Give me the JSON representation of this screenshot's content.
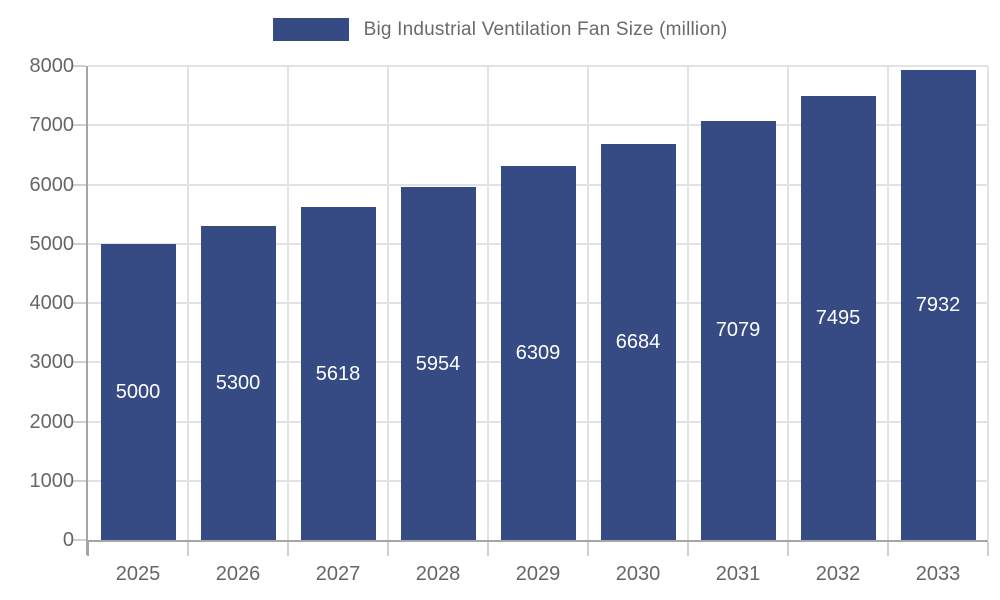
{
  "chart_data": {
    "type": "bar",
    "series_name": "Big Industrial Ventilation Fan Size (million)",
    "legend_entries": [
      "Big Industrial Ventilation Fan Size (million)"
    ],
    "legend_position": "top-center",
    "categories": [
      "2025",
      "2026",
      "2027",
      "2028",
      "2029",
      "2030",
      "2031",
      "2032",
      "2033"
    ],
    "values": [
      5000,
      5300,
      5618,
      5954,
      6309,
      6684,
      7079,
      7495,
      7932
    ],
    "xlabel": "",
    "ylabel": "",
    "ylim": [
      0,
      8000
    ],
    "yticks": [
      0,
      1000,
      2000,
      3000,
      4000,
      5000,
      6000,
      7000,
      8000
    ],
    "grid": true,
    "bar_label_position": "inside-center",
    "colors": {
      "bar": "#364a84",
      "bar_label": "#ffffff",
      "axis_label": "#666666",
      "legend_text": "#6a6a6a",
      "gridline": "#e2e2e2",
      "tick": "#d0d0d0",
      "axis_line": "#a5a5a5",
      "background": "#ffffff"
    }
  }
}
